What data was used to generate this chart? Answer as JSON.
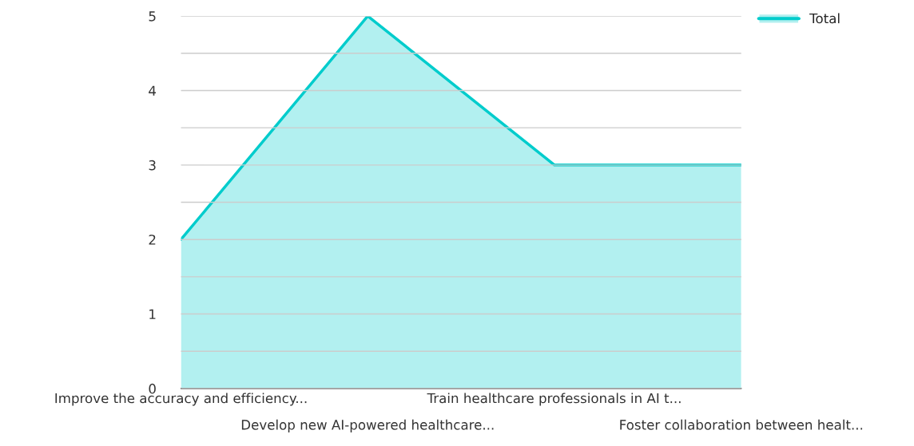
{
  "chart_data": {
    "type": "area",
    "categories": [
      "Improve the accuracy and efficiency...",
      "Develop new AI-powered healthcare...",
      "Train healthcare professionals in AI t...",
      "Foster collaboration between healt..."
    ],
    "series": [
      {
        "name": "Total",
        "color": "#00cccc",
        "values": [
          2,
          5,
          3,
          3
        ]
      }
    ],
    "ylim": [
      0,
      5
    ],
    "yticks": [
      0,
      {
        "value": 0.5,
        "label": null
      },
      1,
      {
        "value": 1.5,
        "label": null
      },
      2,
      {
        "value": 2.5,
        "label": null
      },
      3,
      {
        "value": 3.5,
        "label": null
      },
      4,
      {
        "value": 4.5,
        "label": null
      },
      5
    ],
    "grid": "y",
    "legend": "top right"
  }
}
